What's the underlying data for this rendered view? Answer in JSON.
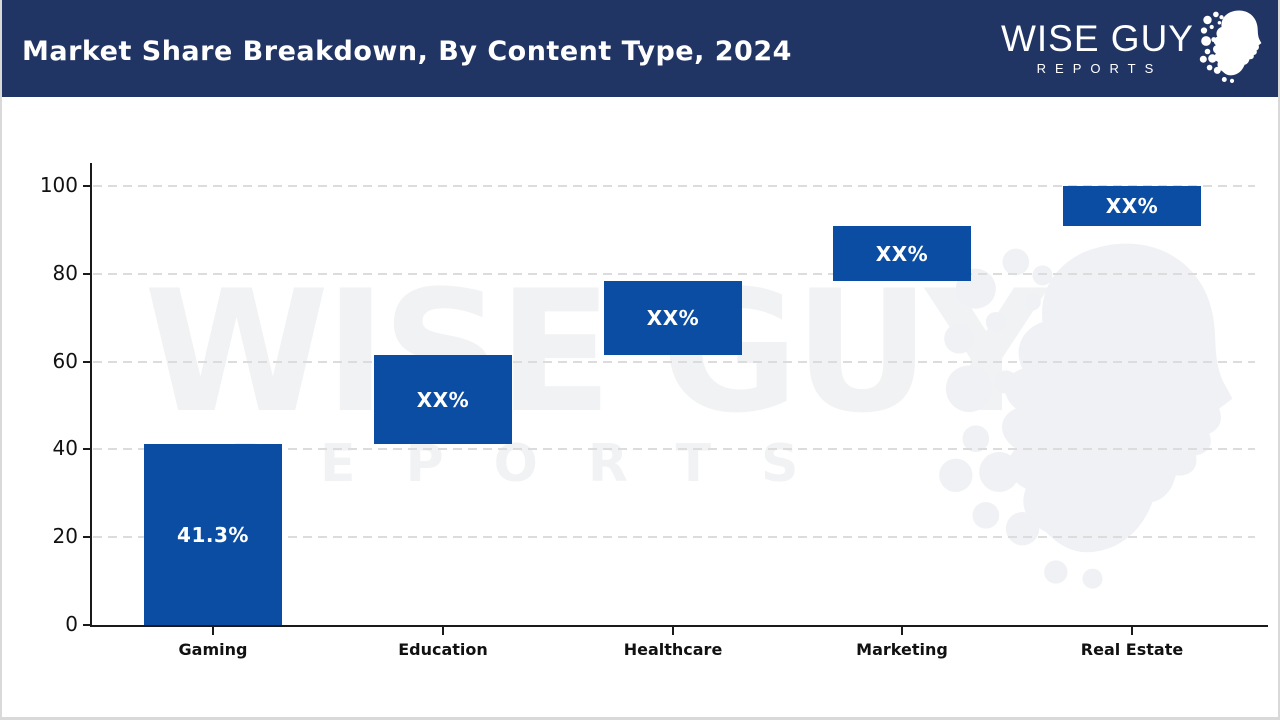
{
  "header": {
    "title": "Market Share Breakdown, By Content Type, 2024",
    "logo": {
      "line1": "WISE GUY",
      "line2": "REPORTS"
    }
  },
  "watermark": {
    "line1": "WISE GUY",
    "line2": "REPORTS"
  },
  "colors": {
    "header_bg": "#213564",
    "bar": "#0b4da2",
    "grid": "#dcdcdc",
    "watermark": "#f1f2f4",
    "axis": "#1a1a1a",
    "label_text": "#ffffff"
  },
  "chart_data": {
    "type": "bar",
    "variant": "waterfall",
    "title": "Market Share Breakdown, By Content Type, 2024",
    "categories": [
      "Gaming",
      "Education",
      "Healthcare",
      "Marketing",
      "Real Estate"
    ],
    "segments": [
      {
        "category": "Gaming",
        "start": 0,
        "end": 41.3,
        "label": "41.3%"
      },
      {
        "category": "Education",
        "start": 41.3,
        "end": 61.6,
        "label": "XX%"
      },
      {
        "category": "Healthcare",
        "start": 61.6,
        "end": 78.4,
        "label": "XX%"
      },
      {
        "category": "Marketing",
        "start": 78.4,
        "end": 91.0,
        "label": "XX%"
      },
      {
        "category": "Real Estate",
        "start": 91.0,
        "end": 100.0,
        "label": "XX%"
      }
    ],
    "xlabel": "",
    "ylabel": "",
    "ylim": [
      0,
      105
    ],
    "yticks": [
      0,
      20,
      40,
      60,
      80,
      100
    ],
    "grid": "horizontal-dashed",
    "legend": "none",
    "bar_color": "#0b4da2"
  }
}
